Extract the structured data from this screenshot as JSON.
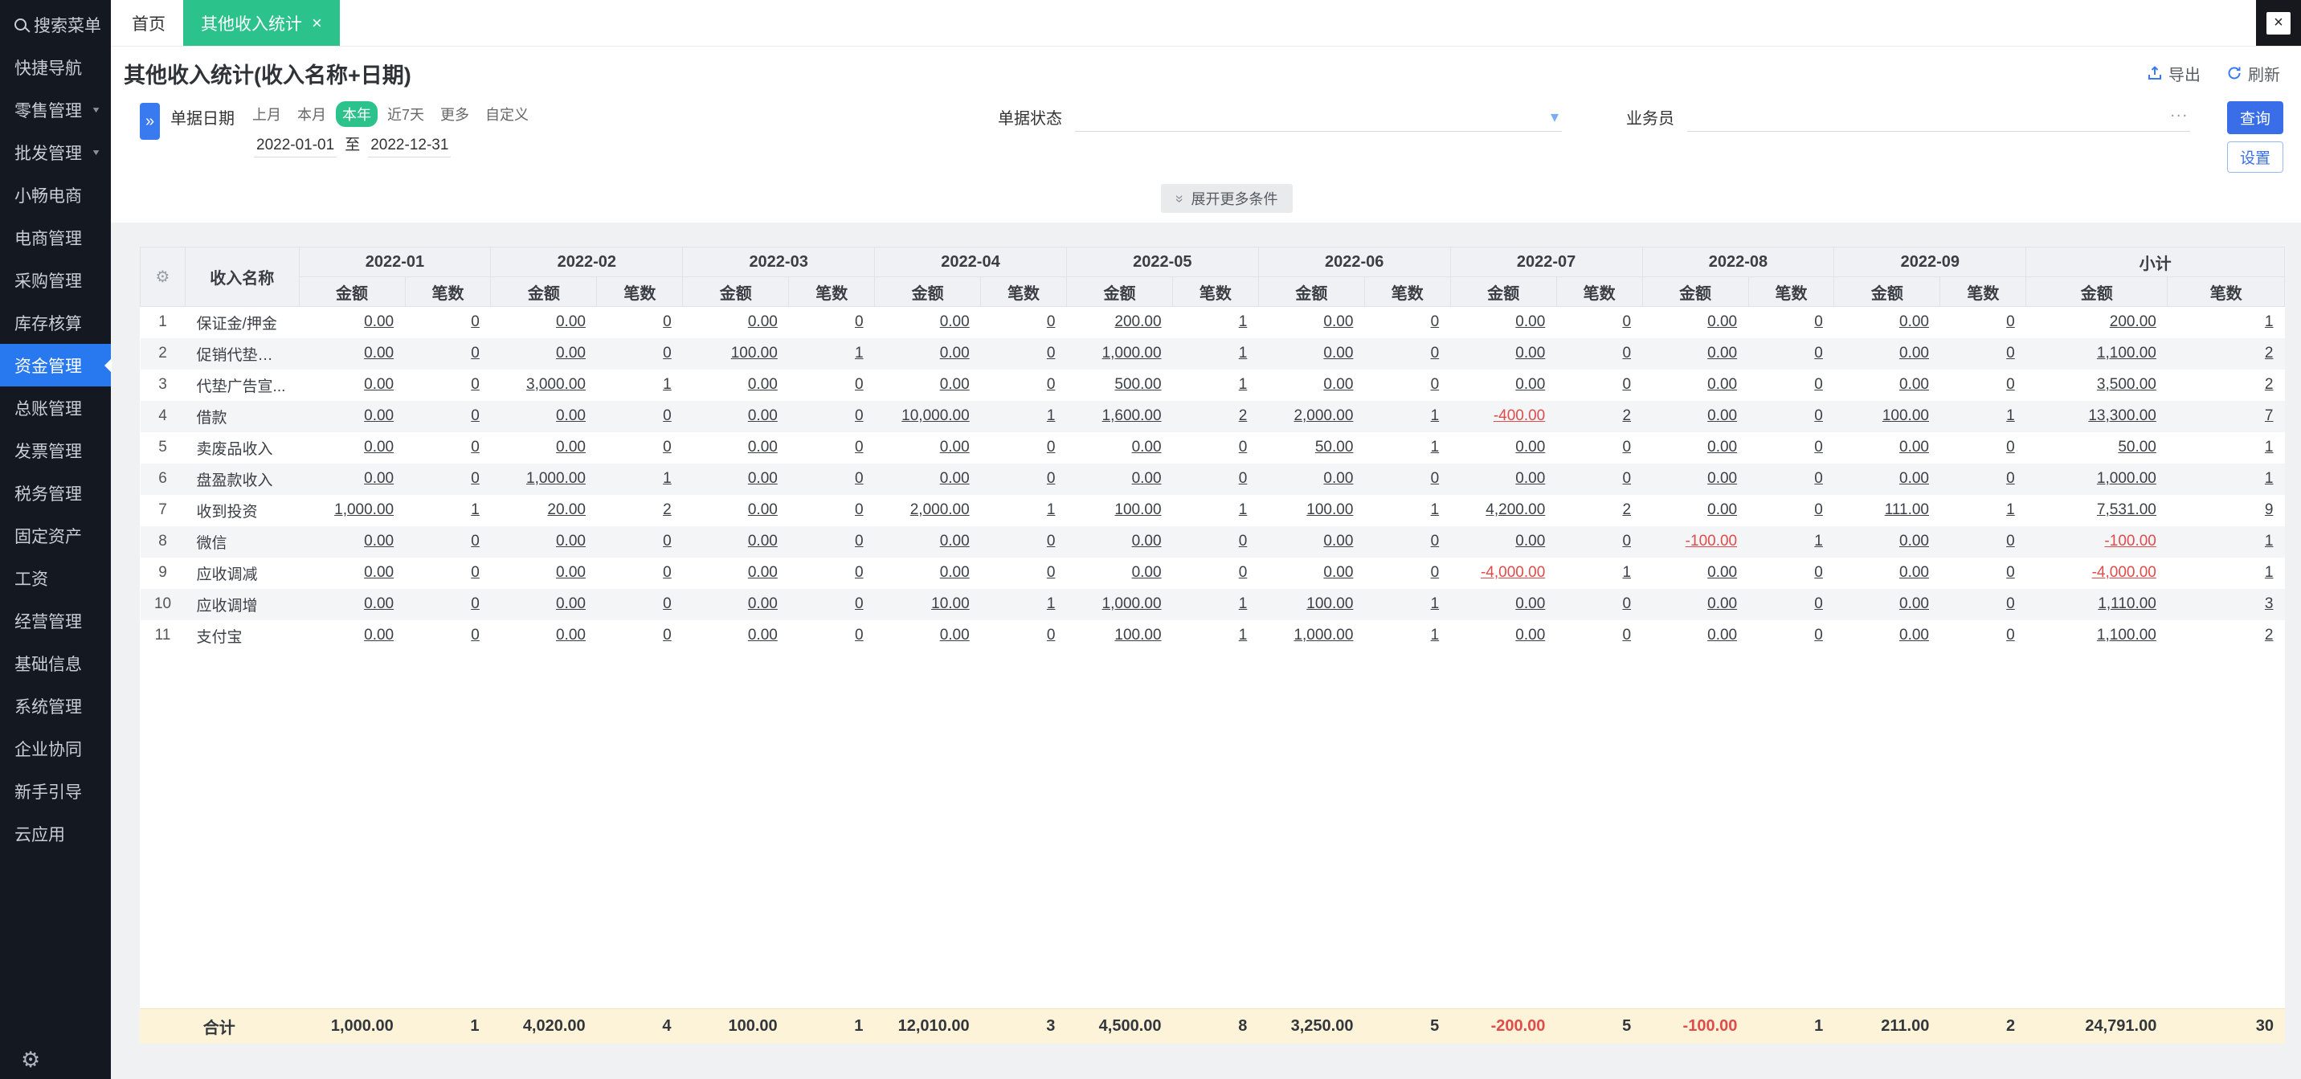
{
  "colors": {
    "accent_blue": "#3a7af0",
    "accent_green": "#2cc28b",
    "negative_red": "#e04b4b",
    "total_row_bg": "#fcf3d8",
    "sidebar_bg": "#141821",
    "sidebar_active_bg": "#2878f0"
  },
  "window": {
    "close_label": "×"
  },
  "sidebar": {
    "items": [
      {
        "label": "搜索菜单",
        "icon": "search"
      },
      {
        "label": "快捷导航"
      },
      {
        "label": "零售管理",
        "caret": true
      },
      {
        "label": "批发管理",
        "caret": true
      },
      {
        "label": "小畅电商"
      },
      {
        "label": "电商管理"
      },
      {
        "label": "采购管理"
      },
      {
        "label": "库存核算"
      },
      {
        "label": "资金管理",
        "active": true
      },
      {
        "label": "总账管理"
      },
      {
        "label": "发票管理"
      },
      {
        "label": "税务管理"
      },
      {
        "label": "固定资产"
      },
      {
        "label": "工资"
      },
      {
        "label": "经营管理"
      },
      {
        "label": "基础信息"
      },
      {
        "label": "系统管理"
      },
      {
        "label": "企业协同"
      },
      {
        "label": "新手引导"
      },
      {
        "label": "云应用"
      }
    ]
  },
  "tabs": [
    {
      "label": "首页",
      "active": false,
      "closable": false
    },
    {
      "label": "其他收入统计",
      "active": true,
      "closable": true
    }
  ],
  "page": {
    "title": "其他收入统计(收入名称+日期)",
    "actions": {
      "export": "导出",
      "refresh": "刷新"
    }
  },
  "filters": {
    "date": {
      "label": "单据日期",
      "options": [
        "上月",
        "本月",
        "本年",
        "近7天",
        "更多",
        "自定义"
      ],
      "selected": "本年",
      "from": "2022-01-01",
      "separator": "至",
      "to": "2022-12-31"
    },
    "status": {
      "label": "单据状态",
      "value": ""
    },
    "salesman": {
      "label": "业务员",
      "value": "",
      "more": "..."
    },
    "query_button": "查询",
    "settings_button": "设置",
    "expand_more": "展开更多条件"
  },
  "report": {
    "columns": {
      "name": "收入名称",
      "amount": "金额",
      "count": "笔数",
      "subtotal": "小计"
    },
    "months": [
      "2022-01",
      "2022-02",
      "2022-03",
      "2022-04",
      "2022-05",
      "2022-06",
      "2022-07",
      "2022-08",
      "2022-09"
    ],
    "rows": [
      {
        "name": "保证金/押金",
        "values": [
          [
            "0.00",
            "0"
          ],
          [
            "0.00",
            "0"
          ],
          [
            "0.00",
            "0"
          ],
          [
            "0.00",
            "0"
          ],
          [
            "200.00",
            "1"
          ],
          [
            "0.00",
            "0"
          ],
          [
            "0.00",
            "0"
          ],
          [
            "0.00",
            "0"
          ],
          [
            "0.00",
            "0"
          ],
          [
            "200.00",
            "1"
          ]
        ]
      },
      {
        "name": "促销代垫费用",
        "values": [
          [
            "0.00",
            "0"
          ],
          [
            "0.00",
            "0"
          ],
          [
            "100.00",
            "1"
          ],
          [
            "0.00",
            "0"
          ],
          [
            "1,000.00",
            "1"
          ],
          [
            "0.00",
            "0"
          ],
          [
            "0.00",
            "0"
          ],
          [
            "0.00",
            "0"
          ],
          [
            "0.00",
            "0"
          ],
          [
            "1,100.00",
            "2"
          ]
        ]
      },
      {
        "name": "代垫广告宣...",
        "values": [
          [
            "0.00",
            "0"
          ],
          [
            "3,000.00",
            "1"
          ],
          [
            "0.00",
            "0"
          ],
          [
            "0.00",
            "0"
          ],
          [
            "500.00",
            "1"
          ],
          [
            "0.00",
            "0"
          ],
          [
            "0.00",
            "0"
          ],
          [
            "0.00",
            "0"
          ],
          [
            "0.00",
            "0"
          ],
          [
            "3,500.00",
            "2"
          ]
        ]
      },
      {
        "name": "借款",
        "values": [
          [
            "0.00",
            "0"
          ],
          [
            "0.00",
            "0"
          ],
          [
            "0.00",
            "0"
          ],
          [
            "10,000.00",
            "1"
          ],
          [
            "1,600.00",
            "2"
          ],
          [
            "2,000.00",
            "1"
          ],
          [
            "-400.00",
            "2"
          ],
          [
            "0.00",
            "0"
          ],
          [
            "100.00",
            "1"
          ],
          [
            "13,300.00",
            "7"
          ]
        ]
      },
      {
        "name": "卖废品收入",
        "values": [
          [
            "0.00",
            "0"
          ],
          [
            "0.00",
            "0"
          ],
          [
            "0.00",
            "0"
          ],
          [
            "0.00",
            "0"
          ],
          [
            "0.00",
            "0"
          ],
          [
            "50.00",
            "1"
          ],
          [
            "0.00",
            "0"
          ],
          [
            "0.00",
            "0"
          ],
          [
            "0.00",
            "0"
          ],
          [
            "50.00",
            "1"
          ]
        ]
      },
      {
        "name": "盘盈款收入",
        "values": [
          [
            "0.00",
            "0"
          ],
          [
            "1,000.00",
            "1"
          ],
          [
            "0.00",
            "0"
          ],
          [
            "0.00",
            "0"
          ],
          [
            "0.00",
            "0"
          ],
          [
            "0.00",
            "0"
          ],
          [
            "0.00",
            "0"
          ],
          [
            "0.00",
            "0"
          ],
          [
            "0.00",
            "0"
          ],
          [
            "1,000.00",
            "1"
          ]
        ]
      },
      {
        "name": "收到投资",
        "values": [
          [
            "1,000.00",
            "1"
          ],
          [
            "20.00",
            "2"
          ],
          [
            "0.00",
            "0"
          ],
          [
            "2,000.00",
            "1"
          ],
          [
            "100.00",
            "1"
          ],
          [
            "100.00",
            "1"
          ],
          [
            "4,200.00",
            "2"
          ],
          [
            "0.00",
            "0"
          ],
          [
            "111.00",
            "1"
          ],
          [
            "7,531.00",
            "9"
          ]
        ]
      },
      {
        "name": "微信",
        "values": [
          [
            "0.00",
            "0"
          ],
          [
            "0.00",
            "0"
          ],
          [
            "0.00",
            "0"
          ],
          [
            "0.00",
            "0"
          ],
          [
            "0.00",
            "0"
          ],
          [
            "0.00",
            "0"
          ],
          [
            "0.00",
            "0"
          ],
          [
            "-100.00",
            "1"
          ],
          [
            "0.00",
            "0"
          ],
          [
            "-100.00",
            "1"
          ]
        ]
      },
      {
        "name": "应收调减",
        "values": [
          [
            "0.00",
            "0"
          ],
          [
            "0.00",
            "0"
          ],
          [
            "0.00",
            "0"
          ],
          [
            "0.00",
            "0"
          ],
          [
            "0.00",
            "0"
          ],
          [
            "0.00",
            "0"
          ],
          [
            "-4,000.00",
            "1"
          ],
          [
            "0.00",
            "0"
          ],
          [
            "0.00",
            "0"
          ],
          [
            "-4,000.00",
            "1"
          ]
        ]
      },
      {
        "name": "应收调增",
        "values": [
          [
            "0.00",
            "0"
          ],
          [
            "0.00",
            "0"
          ],
          [
            "0.00",
            "0"
          ],
          [
            "10.00",
            "1"
          ],
          [
            "1,000.00",
            "1"
          ],
          [
            "100.00",
            "1"
          ],
          [
            "0.00",
            "0"
          ],
          [
            "0.00",
            "0"
          ],
          [
            "0.00",
            "0"
          ],
          [
            "1,110.00",
            "3"
          ]
        ]
      },
      {
        "name": "支付宝",
        "values": [
          [
            "0.00",
            "0"
          ],
          [
            "0.00",
            "0"
          ],
          [
            "0.00",
            "0"
          ],
          [
            "0.00",
            "0"
          ],
          [
            "100.00",
            "1"
          ],
          [
            "1,000.00",
            "1"
          ],
          [
            "0.00",
            "0"
          ],
          [
            "0.00",
            "0"
          ],
          [
            "0.00",
            "0"
          ],
          [
            "1,100.00",
            "2"
          ]
        ]
      }
    ],
    "total": {
      "label": "合计",
      "values": [
        [
          "1,000.00",
          "1"
        ],
        [
          "4,020.00",
          "4"
        ],
        [
          "100.00",
          "1"
        ],
        [
          "12,010.00",
          "3"
        ],
        [
          "4,500.00",
          "8"
        ],
        [
          "3,250.00",
          "5"
        ],
        [
          "-200.00",
          "5"
        ],
        [
          "-100.00",
          "1"
        ],
        [
          "211.00",
          "2"
        ],
        [
          "24,791.00",
          "30"
        ]
      ]
    }
  }
}
